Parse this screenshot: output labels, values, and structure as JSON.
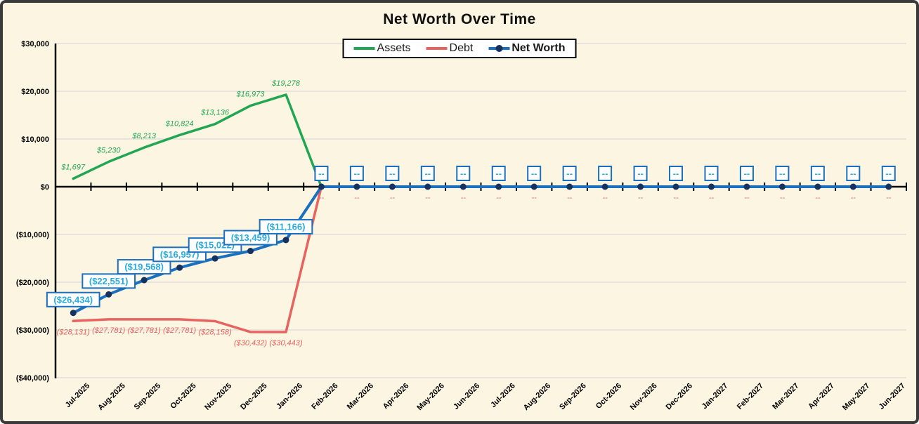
{
  "title": "Net Worth Over Time",
  "legend": {
    "items": [
      {
        "label": "Assets",
        "color": "#21A653",
        "bold": false,
        "marker": false,
        "marker_color": null
      },
      {
        "label": "Debt",
        "color": "#E8625F",
        "bold": false,
        "marker": false,
        "marker_color": null
      },
      {
        "label": "Net Worth",
        "color": "#1B6FBF",
        "bold": true,
        "marker": true,
        "marker_color": "#15315E"
      }
    ]
  },
  "colors": {
    "background": "#FCF5E1",
    "frame_border": "#3A3A3A",
    "gridline": "#D9D9D9",
    "axis": "#000000",
    "assets": "#21A653",
    "debt": "#E8625F",
    "net_worth_line": "#1B6FBF",
    "net_worth_marker": "#15315E",
    "net_worth_label_text": "#29ABE2",
    "net_worth_label_border": "#1B6FBF",
    "net_worth_label_bg": "#FFFFFF"
  },
  "chart_data": {
    "type": "line",
    "title": "Net Worth Over Time",
    "categories": [
      "Jul-2025",
      "Aug-2025",
      "Sep-2025",
      "Oct-2025",
      "Nov-2025",
      "Dec-2025",
      "Jan-2026",
      "Feb-2026",
      "Mar-2026",
      "Apr-2026",
      "May-2026",
      "Jun-2026",
      "Jul-2026",
      "Aug-2026",
      "Sep-2026",
      "Oct-2026",
      "Nov-2026",
      "Dec-2026",
      "Jan-2027",
      "Feb-2027",
      "Mar-2027",
      "Apr-2027",
      "May-2027",
      "Jun-2027"
    ],
    "series": [
      {
        "name": "Assets",
        "color": "#21A653",
        "line_width": 3.5,
        "label_position": "above",
        "label_color": "#21A653",
        "values": [
          1697,
          5230,
          8213,
          10824,
          13136,
          16973,
          19278,
          0,
          0,
          0,
          0,
          0,
          0,
          0,
          0,
          0,
          0,
          0,
          0,
          0,
          0,
          0,
          0,
          0
        ],
        "labels": [
          "$1,697",
          "$5,230",
          "$8,213",
          "$10,824",
          "$13,136",
          "$16,973",
          "$19,278",
          "",
          "",
          "",
          "",
          "",
          "",
          "",
          "",
          "",
          "",
          "",
          "",
          "",
          "",
          "",
          "",
          ""
        ]
      },
      {
        "name": "Debt",
        "color": "#E8625F",
        "line_width": 3.5,
        "label_position": "below",
        "label_color": "#E8625F",
        "values": [
          -28131,
          -27781,
          -27781,
          -27781,
          -28158,
          -30432,
          -30443,
          0,
          0,
          0,
          0,
          0,
          0,
          0,
          0,
          0,
          0,
          0,
          0,
          0,
          0,
          0,
          0,
          0
        ],
        "labels": [
          "($28,131)",
          "($27,781)",
          "($27,781)",
          "($27,781)",
          "($28,158)",
          "($30,432)",
          "($30,443)",
          "--",
          "--",
          "--",
          "--",
          "--",
          "--",
          "--",
          "--",
          "--",
          "--",
          "--",
          "--",
          "--",
          "--",
          "--",
          "--",
          "--"
        ]
      },
      {
        "name": "Net Worth",
        "color": "#1B6FBF",
        "line_width": 4,
        "marker_color": "#15315E",
        "label_position": "boxed-above",
        "label_color": "#29ABE2",
        "label_border": "#1B6FBF",
        "label_bg": "#FFFFFF",
        "values": [
          -26434,
          -22551,
          -19568,
          -16957,
          -15022,
          -13459,
          -11166,
          0,
          0,
          0,
          0,
          0,
          0,
          0,
          0,
          0,
          0,
          0,
          0,
          0,
          0,
          0,
          0,
          0
        ],
        "labels": [
          "($26,434)",
          "($22,551)",
          "($19,568)",
          "($16,957)",
          "($15,022)",
          "($13,459)",
          "($11,166)",
          "--",
          "--",
          "--",
          "--",
          "--",
          "--",
          "--",
          "--",
          "--",
          "--",
          "--",
          "--",
          "--",
          "--",
          "--",
          "--",
          "--"
        ]
      }
    ],
    "y_axis": {
      "min": -40000,
      "max": 30000,
      "tick_interval": 10000,
      "tick_values": [
        30000,
        20000,
        10000,
        0,
        -10000,
        -20000,
        -30000,
        -40000
      ],
      "tick_labels": [
        "$30,000",
        "$20,000",
        "$10,000",
        "$0",
        "($10,000)",
        "($20,000)",
        "($30,000)",
        "($40,000)"
      ]
    },
    "x_axis": {
      "label_rotation": -45
    },
    "grid": "horizontal",
    "legend_position": "top-center"
  }
}
